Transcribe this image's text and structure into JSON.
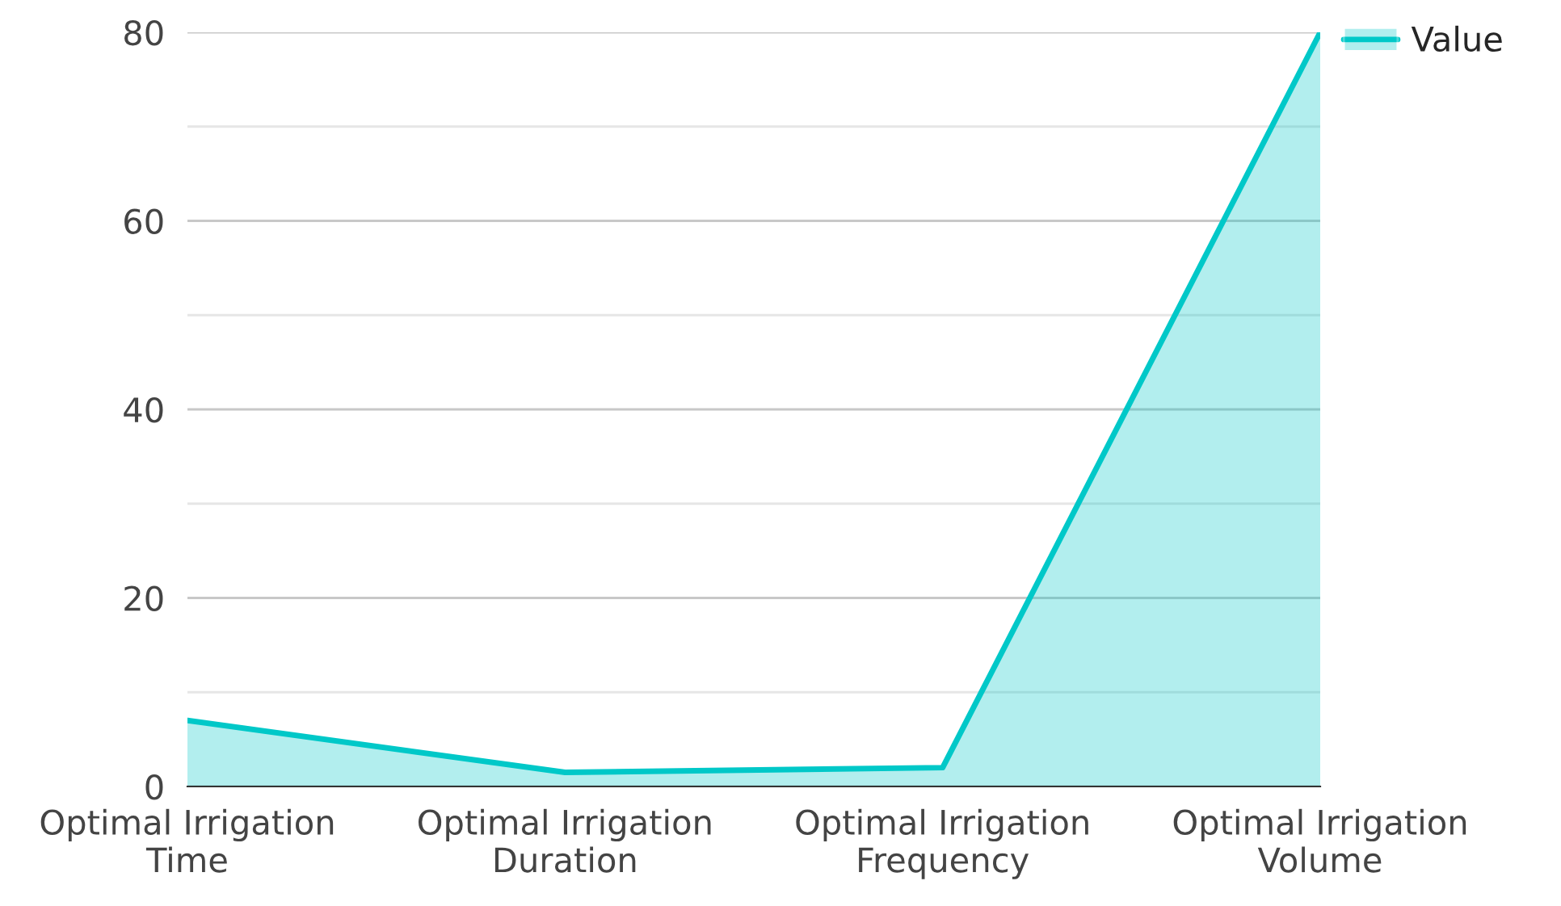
{
  "chart_data": {
    "type": "area",
    "categories": [
      "Optimal Irrigation\nTime",
      "Optimal Irrigation\nDuration",
      "Optimal Irrigation\nFrequency",
      "Optimal Irrigation\nVolume"
    ],
    "series": [
      {
        "name": "Value",
        "color": "#00c8c8",
        "values": [
          7,
          1.5,
          2,
          80
        ]
      }
    ],
    "ylim": [
      0,
      80
    ],
    "yticks": [
      0,
      {
        "value": 10,
        "label": null
      },
      20,
      {
        "value": 30,
        "label": null
      },
      40,
      {
        "value": 50,
        "label": null
      },
      60,
      {
        "value": 70,
        "label": null
      },
      80
    ],
    "grid": "y",
    "legend": "top right",
    "marker": "none",
    "line_style": "solid"
  }
}
